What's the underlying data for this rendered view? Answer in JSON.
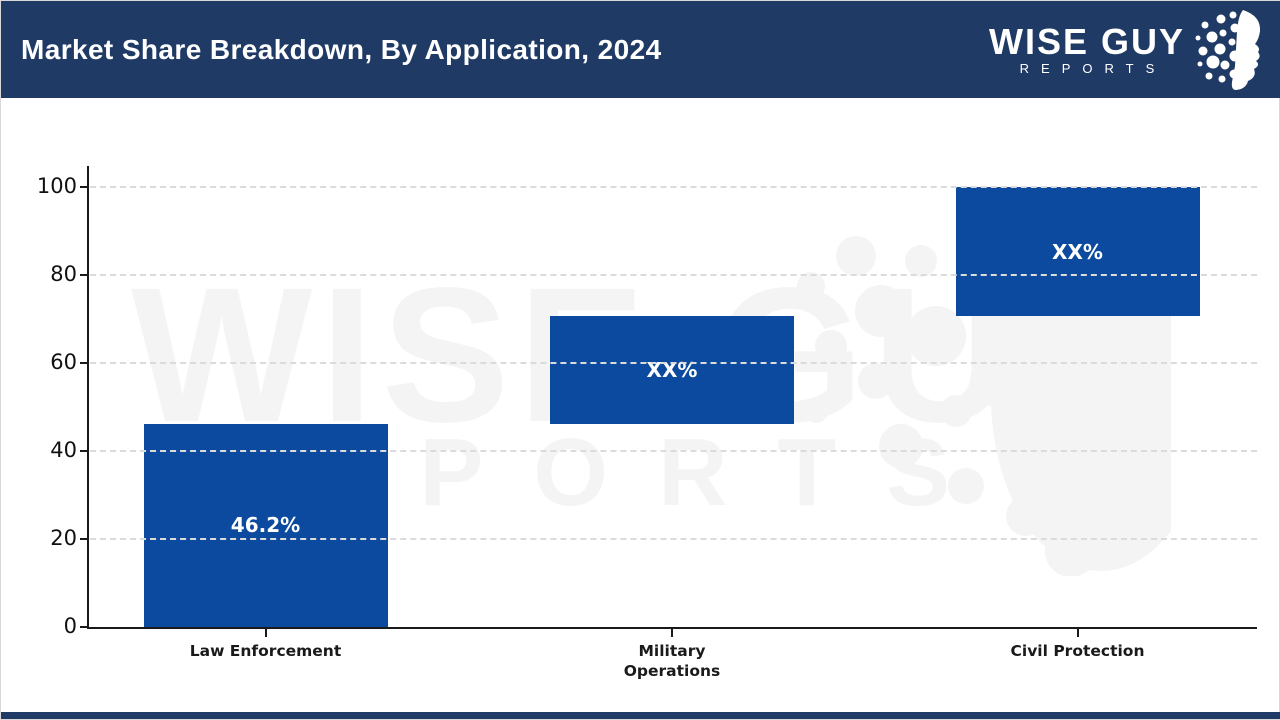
{
  "header": {
    "title": "Market Share Breakdown, By Application, 2024",
    "logo": {
      "line1": "WISE GUY",
      "line2": "REPORTS"
    }
  },
  "watermark": {
    "line1": "WISE GUY",
    "line2": "REPORTS"
  },
  "colors": {
    "header_bg": "#203A66",
    "footer_bg": "#203A66",
    "bar": "#0B4A9E",
    "bar_label": "#FFFFFF",
    "grid": "#DBDBDB",
    "axis": "#1A1A1A",
    "watermark": "#F4F4F4"
  },
  "chart_data": {
    "type": "bar",
    "variant": "waterfall-segments",
    "title": "Market Share Breakdown, By Application, 2024",
    "categories": [
      [
        "Law Enforcement"
      ],
      [
        "Military",
        "Operations"
      ],
      [
        "Civil Protection"
      ]
    ],
    "segments": [
      {
        "category": "Law Enforcement",
        "start": 0,
        "end": 46.2,
        "value_label": "46.2%"
      },
      {
        "category": "Military Operations",
        "start": 46.2,
        "end": 70.6,
        "value_label": "XX%"
      },
      {
        "category": "Civil Protection",
        "start": 70.6,
        "end": 100,
        "value_label": "XX%"
      }
    ],
    "ylim": [
      0,
      100
    ],
    "yticks": [
      "0",
      "20",
      "40",
      "60",
      "80",
      "100"
    ],
    "grid": true,
    "grid_style": "dashed",
    "legend": "none",
    "bar_color": "#0B4A9E",
    "label_color": "#FFFFFF"
  }
}
